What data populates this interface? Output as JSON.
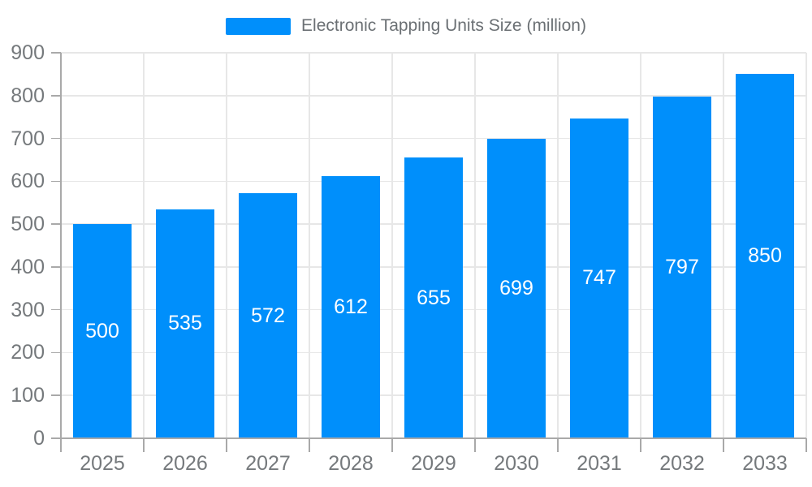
{
  "legend": {
    "label": "Electronic Tapping Units Size (million)"
  },
  "chart_data": {
    "type": "bar",
    "title": "Electronic Tapping Units Size (million)",
    "categories": [
      "2025",
      "2026",
      "2027",
      "2028",
      "2029",
      "2030",
      "2031",
      "2032",
      "2033"
    ],
    "values": [
      500,
      535,
      572,
      612,
      655,
      699,
      747,
      797,
      850
    ],
    "xlabel": "",
    "ylabel": "",
    "ylim": [
      0,
      900
    ],
    "ytick_step": 100,
    "ytick_labels": [
      "0",
      "100",
      "200",
      "300",
      "400",
      "500",
      "600",
      "700",
      "800",
      "900"
    ],
    "grid": true,
    "legend_position": "top",
    "colors": {
      "bar": "#008FFB",
      "grid": "#e7e7e7",
      "axis": "#a9a9a9",
      "tick_label": "#75797c",
      "legend_text": "#6b7074",
      "data_label": "#ffffff"
    }
  }
}
